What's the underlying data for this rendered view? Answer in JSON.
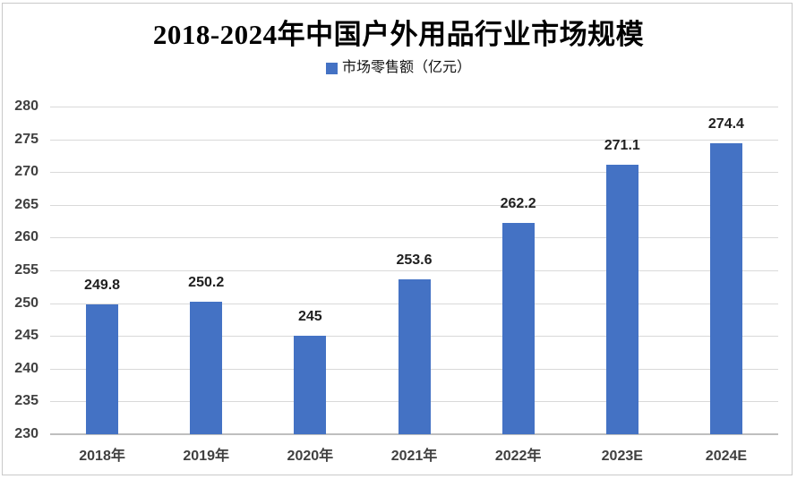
{
  "chart_data": {
    "type": "bar",
    "title": "2018-2024年中国户外用品行业市场规模",
    "legend": [
      {
        "label": "市场零售额（亿元）",
        "marker": "blue-square"
      }
    ],
    "legend_position": "top",
    "categories": [
      "2018年",
      "2019年",
      "2020年",
      "2021年",
      "2022年",
      "2023E",
      "2024E"
    ],
    "series": [
      {
        "name": "市场零售额（亿元）",
        "values": [
          249.8,
          250.2,
          245,
          253.6,
          262.2,
          271.1,
          274.4
        ]
      }
    ],
    "value_labels": [
      "249.8",
      "250.2",
      "245",
      "253.6",
      "262.2",
      "271.1",
      "274.4"
    ],
    "xlabel": "",
    "ylabel": "",
    "ylim": [
      230,
      280
    ],
    "yticks": [
      230,
      235,
      240,
      245,
      250,
      255,
      260,
      265,
      270,
      275,
      280
    ],
    "grid": true,
    "colors": {
      "bar": "#4472C4",
      "value_label": "#1F1F1F",
      "axis_label": "#404040",
      "gridline": "#D9D9D9",
      "axis_line": "#BFBFBF",
      "border": "#C9C9C9",
      "background": "#FFFFFF"
    }
  }
}
